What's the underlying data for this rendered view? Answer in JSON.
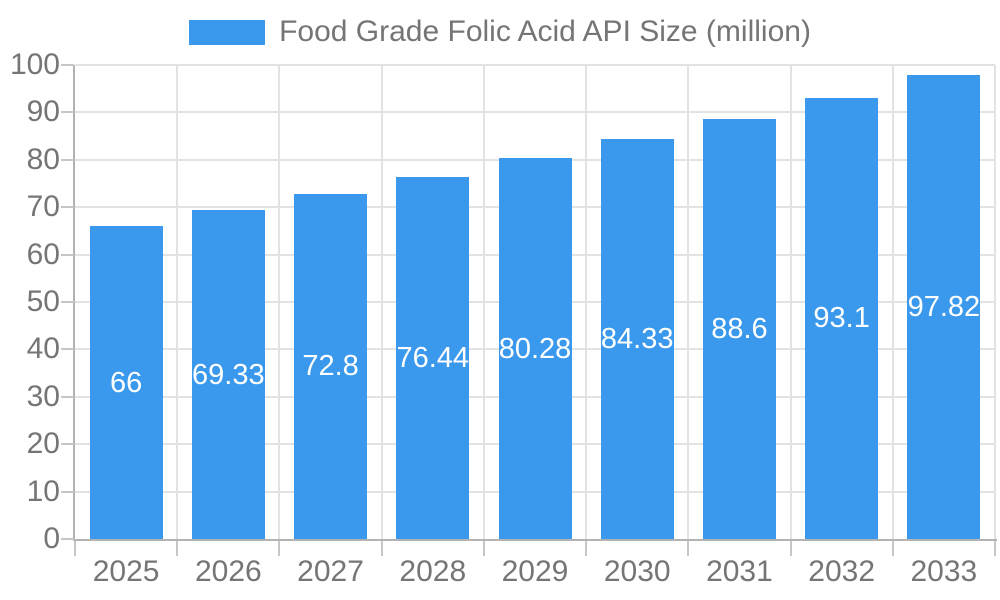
{
  "legend": {
    "label": "Food Grade Folic Acid API Size (million)"
  },
  "chart_data": {
    "type": "bar",
    "title": "Food Grade Folic Acid API Size (million)",
    "series_name": "Food Grade Folic Acid API Size (million)",
    "categories": [
      "2025",
      "2026",
      "2027",
      "2028",
      "2029",
      "2030",
      "2031",
      "2032",
      "2033"
    ],
    "values": [
      66,
      69.33,
      72.8,
      76.44,
      80.28,
      84.33,
      88.6,
      93.1,
      97.82
    ],
    "value_labels": [
      "66",
      "69.33",
      "72.8",
      "76.44",
      "80.28",
      "84.33",
      "88.6",
      "93.1",
      "97.82"
    ],
    "xlabel": "",
    "ylabel": "",
    "ylim": [
      0,
      100
    ],
    "ytick_step": 10,
    "ytick_labels": [
      "0",
      "10",
      "20",
      "30",
      "40",
      "50",
      "60",
      "70",
      "80",
      "90",
      "100"
    ],
    "grid": true,
    "legend_position": "top-center",
    "colors": {
      "bar": "#3A99EC",
      "value_label": "#FFFFFF",
      "axis_label": "#757575",
      "gridline": "#E3E3E3",
      "axis_line": "#B3B3B3",
      "tick": "#C6C6C6",
      "background": "#FFFFFF"
    }
  }
}
